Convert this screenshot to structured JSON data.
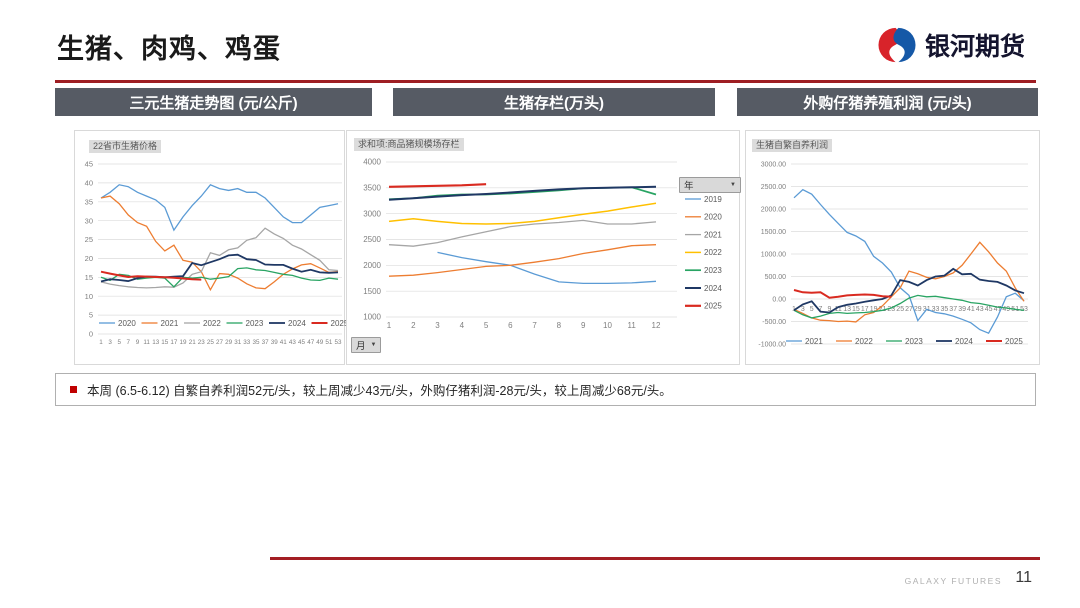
{
  "page": {
    "title": "生猪、肉鸡、鸡蛋",
    "logo_text": "银河期货",
    "footer_brand": "GALAXY FUTURES",
    "page_number": "11",
    "accent_red": "#9e1e23",
    "header_bar_color": "#565b64"
  },
  "panel_headers": [
    "三元生猪走势图 (元/公斤)",
    "生猪存栏(万头)",
    "外购仔猪养殖利润 (元/头)"
  ],
  "summary": {
    "text": "本周 (6.5-6.12) 自繁自养利润52元/头，较上周减少43元/头，外购仔猪利润-28元/头，较上周减少68元/头。"
  },
  "chart_data": [
    {
      "type": "line",
      "title": "22省市生猪价格",
      "legend_position": "bottom",
      "x_unit": "周",
      "x": [
        1,
        3,
        5,
        7,
        9,
        11,
        13,
        15,
        17,
        19,
        21,
        23,
        25,
        27,
        29,
        31,
        33,
        35,
        37,
        39,
        41,
        43,
        45,
        47,
        49,
        51,
        53
      ],
      "ylim": [
        0,
        45
      ],
      "ystep": 5,
      "grid": true,
      "series": [
        {
          "name": "2020",
          "color": "#5b9bd5",
          "width": 1.3,
          "values": [
            36,
            37.5,
            39.5,
            39,
            37.5,
            36.5,
            35.5,
            33.5,
            27.5,
            31,
            34,
            36.5,
            39.5,
            38.5,
            38,
            38.5,
            37.5,
            37.5,
            36,
            33.5,
            31,
            29.5,
            29.5,
            31.5,
            33.5,
            34,
            34.5
          ]
        },
        {
          "name": "2021",
          "color": "#ed7d31",
          "width": 1.3,
          "values": [
            36,
            36.5,
            34.5,
            31.5,
            29.5,
            28.5,
            24.5,
            22,
            23.5,
            19.5,
            19,
            16.5,
            11.7,
            16,
            15.8,
            14.8,
            13.3,
            12.2,
            12,
            13.8,
            15.8,
            17.2,
            18.3,
            18.6,
            17.5,
            16.3,
            16.5
          ]
        },
        {
          "name": "2022",
          "color": "#a6a6a6",
          "width": 1.3,
          "values": [
            13.8,
            13.2,
            12.8,
            12.5,
            12.3,
            12.2,
            12.3,
            12.5,
            12.4,
            13.5,
            15.8,
            16.5,
            21.5,
            20.8,
            22.3,
            22.8,
            24.8,
            25.5,
            28,
            26.5,
            25.3,
            23.5,
            22.5,
            21,
            19.5,
            17,
            16.8
          ]
        },
        {
          "name": "2023",
          "color": "#29a463",
          "width": 1.3,
          "values": [
            15,
            14.2,
            15.8,
            15.5,
            14.5,
            14.8,
            15,
            14.8,
            12.5,
            15,
            14.8,
            15,
            14.5,
            14.8,
            15.2,
            17.3,
            17.5,
            17,
            16.8,
            16.3,
            15.8,
            15.5,
            14.8,
            14.3,
            14.2,
            14.8,
            14.5
          ]
        },
        {
          "name": "2024",
          "color": "#1f3864",
          "width": 1.8,
          "values": [
            13.9,
            14.5,
            14.3,
            14,
            14.8,
            15.2,
            15.2,
            15,
            15.2,
            15.3,
            18.8,
            18.2,
            19,
            19.8,
            20.8,
            21,
            19.8,
            19.6,
            18.4,
            18.3,
            18.3,
            17.3,
            16.5,
            17,
            16.3,
            16.2,
            16.3
          ]
        },
        {
          "name": "2025",
          "color": "#d92a20",
          "width": 2,
          "values": [
            16.5,
            16,
            15.5,
            15.1,
            15.3,
            15.2,
            15.1,
            15,
            14.9,
            14.7,
            14.5,
            14.4,
            null,
            null,
            null,
            null,
            null,
            null,
            null,
            null,
            null,
            null,
            null,
            null,
            null,
            null,
            null
          ]
        }
      ]
    },
    {
      "type": "line",
      "title": "求和项:商品猪规模场存栏",
      "legend_position": "right",
      "filters": {
        "x_field": "月",
        "legend_field": "年"
      },
      "x": [
        1,
        2,
        3,
        4,
        5,
        6,
        7,
        8,
        9,
        10,
        11,
        12
      ],
      "ylim": [
        1000,
        4000
      ],
      "ystep": 500,
      "grid": true,
      "series": [
        {
          "name": "2019",
          "color": "#5b9bd5",
          "width": 1.3,
          "values": [
            null,
            null,
            2250,
            2150,
            2070,
            2000,
            1830,
            1680,
            1650,
            1650,
            1660,
            1690
          ]
        },
        {
          "name": "2020",
          "color": "#ed7d31",
          "width": 1.3,
          "values": [
            1790,
            1810,
            1860,
            1920,
            1980,
            2000,
            2060,
            2130,
            2230,
            2300,
            2380,
            2400
          ]
        },
        {
          "name": "2021",
          "color": "#a6a6a6",
          "width": 1.3,
          "values": [
            2400,
            2370,
            2440,
            2550,
            2650,
            2750,
            2800,
            2830,
            2870,
            2800,
            2800,
            2840
          ]
        },
        {
          "name": "2022",
          "color": "#ffc000",
          "width": 1.5,
          "values": [
            2850,
            2900,
            2850,
            2810,
            2800,
            2810,
            2850,
            2920,
            2990,
            3050,
            3130,
            3200
          ]
        },
        {
          "name": "2023",
          "color": "#29a463",
          "width": 1.7,
          "values": [
            3280,
            3300,
            3350,
            3370,
            3370,
            3390,
            3420,
            3450,
            3490,
            3500,
            3510,
            3370
          ]
        },
        {
          "name": "2024",
          "color": "#1f3864",
          "width": 2,
          "values": [
            3270,
            3300,
            3330,
            3360,
            3380,
            3410,
            3440,
            3470,
            3490,
            3500,
            3510,
            3520
          ]
        },
        {
          "name": "2025",
          "color": "#d92a20",
          "width": 2.2,
          "values": [
            3520,
            3530,
            3540,
            3550,
            3570,
            null,
            null,
            null,
            null,
            null,
            null,
            null
          ]
        }
      ]
    },
    {
      "type": "line",
      "title": "生猪自繁自养利润",
      "legend_position": "bottom",
      "x_unit": "周",
      "x": [
        1,
        3,
        5,
        7,
        9,
        11,
        13,
        15,
        17,
        19,
        21,
        23,
        25,
        27,
        29,
        31,
        33,
        35,
        37,
        39,
        41,
        43,
        45,
        47,
        49,
        51,
        53
      ],
      "ylim": [
        -1000,
        3000
      ],
      "ystep": 500,
      "y_decimals": 2,
      "grid": true,
      "series": [
        {
          "name": "2021",
          "color": "#5b9bd5",
          "width": 1.3,
          "values": [
            2250,
            2430,
            2330,
            2100,
            1880,
            1680,
            1480,
            1400,
            1280,
            950,
            800,
            600,
            250,
            80,
            -480,
            -230,
            -300,
            -330,
            -380,
            -450,
            -530,
            -680,
            -760,
            -400,
            50,
            130,
            -40
          ]
        },
        {
          "name": "2022",
          "color": "#ed7d31",
          "width": 1.3,
          "values": [
            -230,
            -320,
            -420,
            -470,
            -480,
            -500,
            -490,
            -510,
            -350,
            -300,
            -150,
            50,
            250,
            620,
            560,
            480,
            450,
            500,
            580,
            750,
            1000,
            1260,
            1050,
            800,
            620,
            250,
            -50
          ]
        },
        {
          "name": "2023",
          "color": "#29a463",
          "width": 1.3,
          "values": [
            -250,
            -350,
            -420,
            -380,
            -320,
            -300,
            -320,
            -310,
            -300,
            -280,
            -250,
            -200,
            -100,
            20,
            80,
            50,
            60,
            30,
            0,
            -30,
            -80,
            -100,
            -140,
            -180,
            -200,
            -230,
            -250
          ]
        },
        {
          "name": "2024",
          "color": "#1f3864",
          "width": 1.8,
          "values": [
            -250,
            -120,
            -50,
            -280,
            -300,
            -180,
            -130,
            -100,
            -60,
            -30,
            0,
            80,
            420,
            380,
            300,
            420,
            500,
            520,
            670,
            550,
            560,
            430,
            400,
            380,
            300,
            190,
            130
          ]
        },
        {
          "name": "2025",
          "color": "#d92a20",
          "width": 2,
          "values": [
            200,
            150,
            140,
            150,
            30,
            50,
            80,
            90,
            100,
            90,
            60,
            52,
            null,
            null,
            null,
            null,
            null,
            null,
            null,
            null,
            null,
            null,
            null,
            null,
            null,
            null,
            null
          ]
        }
      ]
    }
  ]
}
